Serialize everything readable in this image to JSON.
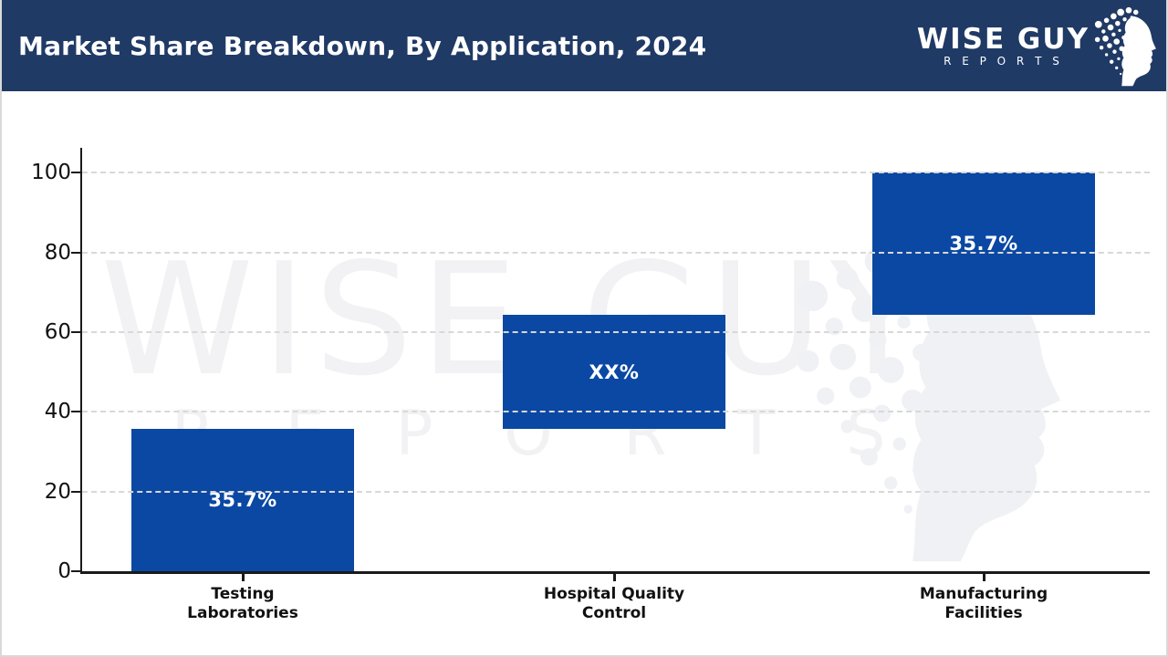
{
  "header": {
    "title": "Market Share Breakdown, By Application, 2024",
    "logo": {
      "line1": "WISE GUY",
      "line2": "R E P O R T S"
    }
  },
  "watermark": {
    "line1": "WISE GUY",
    "line2": "R E P O R T S"
  },
  "colors": {
    "header_bg": "#203a66",
    "bar": "#0a48a3",
    "grid": "#d8d8d8",
    "axis": "#1a1a1a",
    "bar_label": "#ffffff",
    "watermark": "#f2f2f4"
  },
  "chart_data": {
    "type": "bar",
    "subtype": "floating-waterfall",
    "title": "Market Share Breakdown, By Application, 2024",
    "categories": [
      "Testing Laboratories",
      "Hospital Quality Control",
      "Manufacturing Facilities"
    ],
    "category_lines": [
      [
        "Testing",
        "Laboratories"
      ],
      [
        "Hospital Quality",
        "Control"
      ],
      [
        "Manufacturing",
        "Facilities"
      ]
    ],
    "segments": [
      {
        "start": 0,
        "end": 35.7,
        "label": "35.7%"
      },
      {
        "start": 35.7,
        "end": 64.3,
        "label": "XX%"
      },
      {
        "start": 64.3,
        "end": 100,
        "label": "35.7%"
      }
    ],
    "ylim": [
      0,
      100
    ],
    "yticks": [
      0,
      20,
      40,
      60,
      80,
      100
    ],
    "xlabel": "",
    "ylabel": "",
    "grid": "horizontal-dashed",
    "legend": "none"
  }
}
